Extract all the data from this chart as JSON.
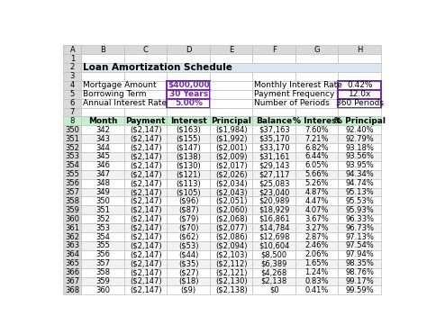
{
  "title": "Loan Amortization Schedule",
  "info_labels_left": [
    "Mortgage Amount",
    "Borrowing Term",
    "Annual Interest Rate"
  ],
  "info_values_left": [
    "$400,000",
    "30 Years",
    "5.00%"
  ],
  "info_labels_right": [
    "Monthly Interest Rate",
    "Payment Frequency",
    "Number of Periods"
  ],
  "info_values_right": [
    "0.42%",
    "12.0x",
    "360 Periods"
  ],
  "col_headers": [
    "Month",
    "Payment",
    "Interest",
    "Principal",
    "Balance",
    "% Interest",
    "% Principal"
  ],
  "row_numbers": [
    350,
    351,
    352,
    353,
    354,
    355,
    356,
    357,
    358,
    359,
    360,
    361,
    362,
    363,
    364,
    365,
    366,
    367,
    368
  ],
  "table_data": [
    [
      "342",
      "($2,147)",
      "($163)",
      "($1,984)",
      "$37,163",
      "7.60%",
      "92.40%"
    ],
    [
      "343",
      "($2,147)",
      "($155)",
      "($1,992)",
      "$35,170",
      "7.21%",
      "92.79%"
    ],
    [
      "344",
      "($2,147)",
      "($147)",
      "($2,001)",
      "$33,170",
      "6.82%",
      "93.18%"
    ],
    [
      "345",
      "($2,147)",
      "($138)",
      "($2,009)",
      "$31,161",
      "6.44%",
      "93.56%"
    ],
    [
      "346",
      "($2,147)",
      "($130)",
      "($2,017)",
      "$29,143",
      "6.05%",
      "93.95%"
    ],
    [
      "347",
      "($2,147)",
      "($121)",
      "($2,026)",
      "$27,117",
      "5.66%",
      "94.34%"
    ],
    [
      "348",
      "($2,147)",
      "($113)",
      "($2,034)",
      "$25,083",
      "5.26%",
      "94.74%"
    ],
    [
      "349",
      "($2,147)",
      "($105)",
      "($2,043)",
      "$23,040",
      "4.87%",
      "95.13%"
    ],
    [
      "350",
      "($2,147)",
      "($96)",
      "($2,051)",
      "$20,989",
      "4.47%",
      "95.53%"
    ],
    [
      "351",
      "($2,147)",
      "($87)",
      "($2,060)",
      "$18,929",
      "4.07%",
      "95.93%"
    ],
    [
      "352",
      "($2,147)",
      "($79)",
      "($2,068)",
      "$16,861",
      "3.67%",
      "96.33%"
    ],
    [
      "353",
      "($2,147)",
      "($70)",
      "($2,077)",
      "$14,784",
      "3.27%",
      "96.73%"
    ],
    [
      "354",
      "($2,147)",
      "($62)",
      "($2,086)",
      "$12,698",
      "2.87%",
      "97.13%"
    ],
    [
      "355",
      "($2,147)",
      "($53)",
      "($2,094)",
      "$10,604",
      "2.46%",
      "97.54%"
    ],
    [
      "356",
      "($2,147)",
      "($44)",
      "($2,103)",
      "$8,500",
      "2.06%",
      "97.94%"
    ],
    [
      "357",
      "($2,147)",
      "($35)",
      "($2,112)",
      "$6,389",
      "1.65%",
      "98.35%"
    ],
    [
      "358",
      "($2,147)",
      "($27)",
      "($2,121)",
      "$4,268",
      "1.24%",
      "98.76%"
    ],
    [
      "359",
      "($2,147)",
      "($18)",
      "($2,130)",
      "$2,138",
      "0.83%",
      "99.17%"
    ],
    [
      "360",
      "($2,147)",
      "($9)",
      "($2,138)",
      "$0",
      "0.41%",
      "99.59%"
    ]
  ],
  "header_bg": "#c6efce",
  "row_bg_odd": "#ffffff",
  "row_bg_even": "#f2f2f2",
  "title_row_bg": "#dce6f1",
  "info_box_color": "#7030a0",
  "info_box_border": "#7030a0",
  "excel_col_labels": [
    "A",
    "B",
    "C",
    "D",
    "E",
    "F",
    "G",
    "H"
  ],
  "excel_col_bg": "#d9d9d9",
  "grid_color": "#bfbfbf"
}
